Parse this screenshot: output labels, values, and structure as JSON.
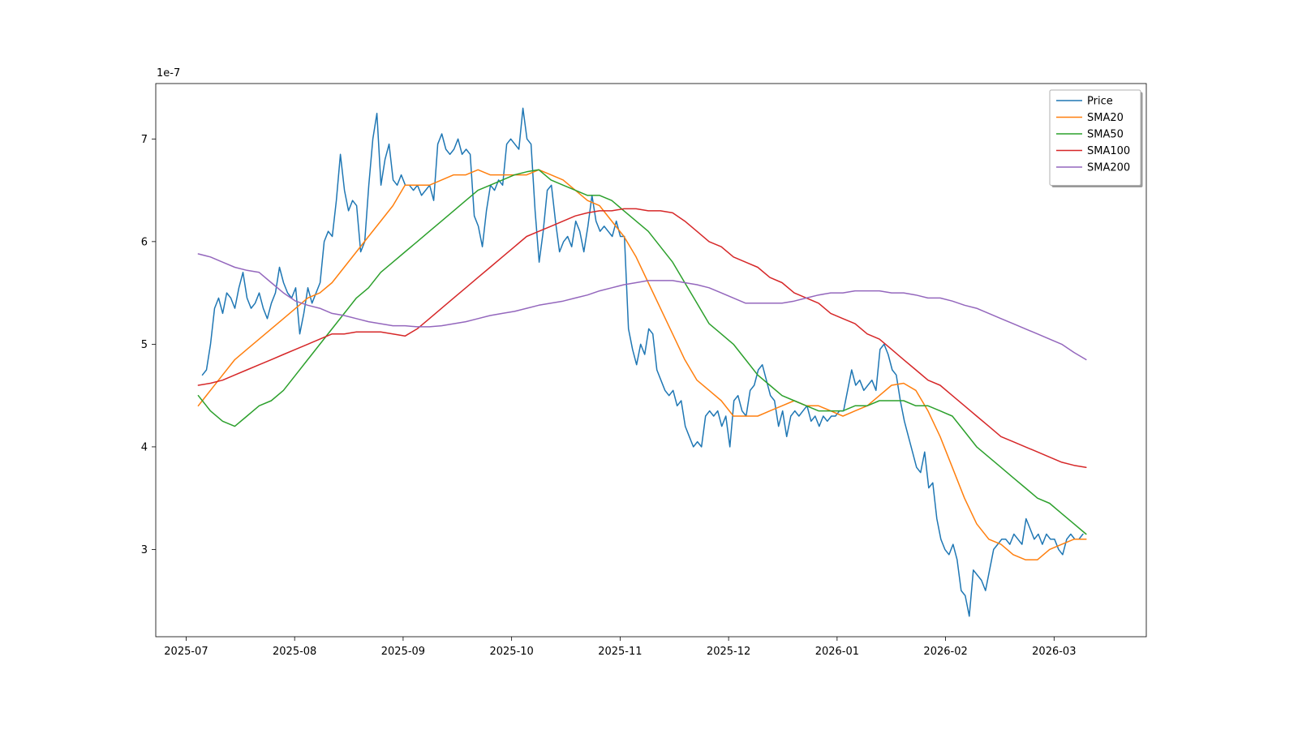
{
  "figure": {
    "background": "#ffffff"
  },
  "chart_data": {
    "type": "line",
    "title": "",
    "offset_text": "1e-7",
    "x_axis": {
      "lim": [
        -0.28,
        8.85
      ],
      "ticks": [
        0,
        1,
        2,
        3,
        4,
        5,
        6,
        7,
        8
      ],
      "labels": [
        "2025-07",
        "2025-08",
        "2025-09",
        "2025-10",
        "2025-11",
        "2025-12",
        "2026-01",
        "2026-02",
        "2026-03"
      ],
      "unit": "months-from-2025-07"
    },
    "y_axis": {
      "lim": [
        2.15,
        7.54
      ],
      "ticks": [
        3,
        4,
        5,
        6,
        7
      ],
      "scale": "1e-7"
    },
    "legend": {
      "position": "upper right",
      "entries": [
        "Price",
        "SMA20",
        "SMA50",
        "SMA100",
        "SMA200"
      ]
    },
    "series": [
      {
        "name": "Price",
        "color": "#1f77b4",
        "x_start": 0.15,
        "x_step": 0.0374,
        "values": [
          4.7,
          4.75,
          5.0,
          5.35,
          5.45,
          5.3,
          5.5,
          5.45,
          5.35,
          5.55,
          5.7,
          5.45,
          5.35,
          5.4,
          5.5,
          5.35,
          5.25,
          5.4,
          5.5,
          5.75,
          5.6,
          5.5,
          5.45,
          5.55,
          5.1,
          5.3,
          5.55,
          5.4,
          5.5,
          5.6,
          6.0,
          6.1,
          6.05,
          6.4,
          6.85,
          6.5,
          6.3,
          6.4,
          6.35,
          5.9,
          6.0,
          6.55,
          7.0,
          7.25,
          6.55,
          6.8,
          6.95,
          6.6,
          6.55,
          6.65,
          6.55,
          6.55,
          6.5,
          6.55,
          6.45,
          6.5,
          6.55,
          6.4,
          6.95,
          7.05,
          6.9,
          6.85,
          6.9,
          7.0,
          6.85,
          6.9,
          6.85,
          6.25,
          6.15,
          5.95,
          6.3,
          6.55,
          6.5,
          6.6,
          6.55,
          6.95,
          7.0,
          6.95,
          6.9,
          7.3,
          7.0,
          6.95,
          6.3,
          5.8,
          6.1,
          6.5,
          6.55,
          6.2,
          5.9,
          6.0,
          6.05,
          5.95,
          6.2,
          6.1,
          5.9,
          6.15,
          6.45,
          6.2,
          6.1,
          6.15,
          6.1,
          6.05,
          6.2,
          6.05,
          6.05,
          5.15,
          4.95,
          4.8,
          5.0,
          4.9,
          5.15,
          5.1,
          4.75,
          4.65,
          4.55,
          4.5,
          4.55,
          4.4,
          4.45,
          4.2,
          4.1,
          4.0,
          4.05,
          4.0,
          4.3,
          4.35,
          4.3,
          4.35,
          4.2,
          4.3,
          4.0,
          4.45,
          4.5,
          4.35,
          4.3,
          4.55,
          4.6,
          4.75,
          4.8,
          4.65,
          4.5,
          4.45,
          4.2,
          4.35,
          4.1,
          4.3,
          4.35,
          4.3,
          4.35,
          4.4,
          4.25,
          4.3,
          4.2,
          4.3,
          4.25,
          4.3,
          4.3,
          4.35,
          4.35,
          4.55,
          4.75,
          4.6,
          4.65,
          4.55,
          4.6,
          4.65,
          4.55,
          4.95,
          5.0,
          4.9,
          4.75,
          4.7,
          4.45,
          4.25,
          4.1,
          3.95,
          3.8,
          3.75,
          3.95,
          3.6,
          3.65,
          3.3,
          3.1,
          3.0,
          2.95,
          3.05,
          2.9,
          2.6,
          2.55,
          2.35,
          2.8,
          2.75,
          2.7,
          2.6,
          2.8,
          3.0,
          3.05,
          3.1,
          3.1,
          3.05,
          3.15,
          3.1,
          3.05,
          3.3,
          3.2,
          3.1,
          3.15,
          3.05,
          3.15,
          3.1,
          3.1,
          3.0,
          2.95,
          3.1,
          3.15,
          3.1,
          3.1,
          3.15
        ]
      },
      {
        "name": "SMA20",
        "color": "#ff7f0e",
        "x_start": 0.112,
        "x_step": 0.1121,
        "values": [
          4.4,
          4.55,
          4.7,
          4.85,
          4.95,
          5.05,
          5.15,
          5.25,
          5.35,
          5.45,
          5.5,
          5.6,
          5.75,
          5.9,
          6.05,
          6.2,
          6.35,
          6.55,
          6.55,
          6.55,
          6.6,
          6.65,
          6.65,
          6.7,
          6.65,
          6.65,
          6.65,
          6.65,
          6.7,
          6.65,
          6.6,
          6.5,
          6.4,
          6.35,
          6.2,
          6.05,
          5.85,
          5.6,
          5.35,
          5.1,
          4.85,
          4.65,
          4.55,
          4.45,
          4.3,
          4.3,
          4.3,
          4.35,
          4.4,
          4.45,
          4.4,
          4.4,
          4.35,
          4.3,
          4.35,
          4.4,
          4.5,
          4.6,
          4.62,
          4.55,
          4.35,
          4.1,
          3.8,
          3.5,
          3.25,
          3.1,
          3.05,
          2.95,
          2.9,
          2.9,
          3.0,
          3.05,
          3.1,
          3.1
        ]
      },
      {
        "name": "SMA50",
        "color": "#2ca02c",
        "x_start": 0.112,
        "x_step": 0.1121,
        "values": [
          4.5,
          4.35,
          4.25,
          4.2,
          4.3,
          4.4,
          4.45,
          4.55,
          4.7,
          4.85,
          5.0,
          5.15,
          5.3,
          5.45,
          5.55,
          5.7,
          5.8,
          5.9,
          6.0,
          6.1,
          6.2,
          6.3,
          6.4,
          6.5,
          6.55,
          6.6,
          6.65,
          6.68,
          6.7,
          6.6,
          6.55,
          6.5,
          6.45,
          6.45,
          6.4,
          6.3,
          6.2,
          6.1,
          5.95,
          5.8,
          5.6,
          5.4,
          5.2,
          5.1,
          5.0,
          4.85,
          4.7,
          4.6,
          4.5,
          4.45,
          4.4,
          4.35,
          4.35,
          4.35,
          4.4,
          4.4,
          4.45,
          4.45,
          4.45,
          4.4,
          4.4,
          4.35,
          4.3,
          4.15,
          4.0,
          3.9,
          3.8,
          3.7,
          3.6,
          3.5,
          3.45,
          3.35,
          3.25,
          3.15
        ]
      },
      {
        "name": "SMA100",
        "color": "#d62728",
        "x_start": 0.112,
        "x_step": 0.1121,
        "values": [
          4.6,
          4.62,
          4.65,
          4.7,
          4.75,
          4.8,
          4.85,
          4.9,
          4.95,
          5.0,
          5.05,
          5.1,
          5.1,
          5.12,
          5.12,
          5.12,
          5.1,
          5.08,
          5.15,
          5.25,
          5.35,
          5.45,
          5.55,
          5.65,
          5.75,
          5.85,
          5.95,
          6.05,
          6.1,
          6.15,
          6.2,
          6.25,
          6.28,
          6.3,
          6.3,
          6.32,
          6.32,
          6.3,
          6.3,
          6.28,
          6.2,
          6.1,
          6.0,
          5.95,
          5.85,
          5.8,
          5.75,
          5.65,
          5.6,
          5.5,
          5.45,
          5.4,
          5.3,
          5.25,
          5.2,
          5.1,
          5.05,
          4.95,
          4.85,
          4.75,
          4.65,
          4.6,
          4.5,
          4.4,
          4.3,
          4.2,
          4.1,
          4.05,
          4.0,
          3.95,
          3.9,
          3.85,
          3.82,
          3.8
        ]
      },
      {
        "name": "SMA200",
        "color": "#9467bd",
        "x_start": 0.112,
        "x_step": 0.1121,
        "values": [
          5.88,
          5.85,
          5.8,
          5.75,
          5.72,
          5.7,
          5.6,
          5.5,
          5.42,
          5.38,
          5.35,
          5.3,
          5.28,
          5.25,
          5.22,
          5.2,
          5.18,
          5.18,
          5.17,
          5.17,
          5.18,
          5.2,
          5.22,
          5.25,
          5.28,
          5.3,
          5.32,
          5.35,
          5.38,
          5.4,
          5.42,
          5.45,
          5.48,
          5.52,
          5.55,
          5.58,
          5.6,
          5.62,
          5.62,
          5.62,
          5.6,
          5.58,
          5.55,
          5.5,
          5.45,
          5.4,
          5.4,
          5.4,
          5.4,
          5.42,
          5.45,
          5.48,
          5.5,
          5.5,
          5.52,
          5.52,
          5.52,
          5.5,
          5.5,
          5.48,
          5.45,
          5.45,
          5.42,
          5.38,
          5.35,
          5.3,
          5.25,
          5.2,
          5.15,
          5.1,
          5.05,
          5.0,
          4.92,
          4.85
        ]
      }
    ],
    "style": {
      "line_width": 1.5,
      "spine_color": "#000000",
      "tick_label_color": "#000000",
      "tick_font_size": 13,
      "legend_border_color": "#b0b0b0",
      "legend_shadow_color": "#999999",
      "legend_background": "#ffffff"
    }
  }
}
